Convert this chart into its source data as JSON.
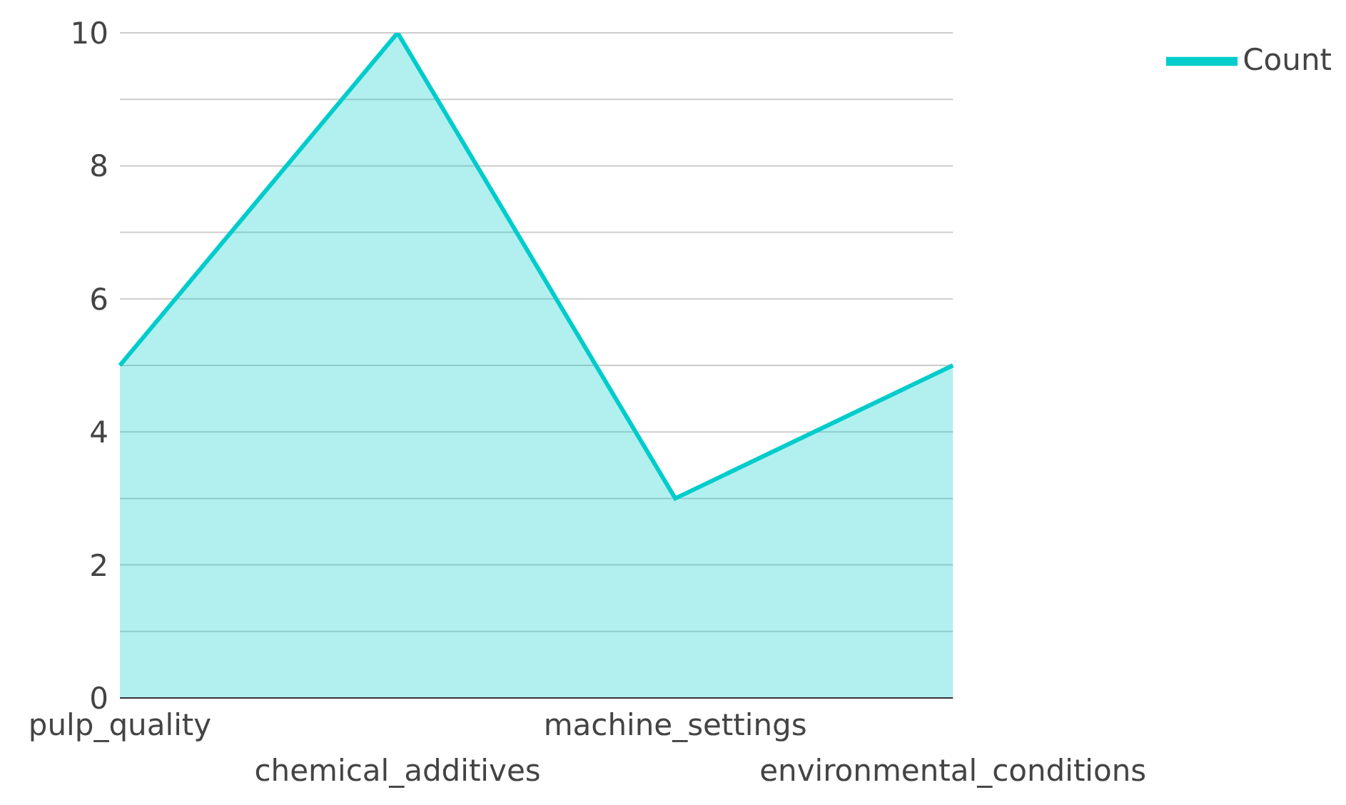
{
  "chart_data": {
    "type": "area",
    "categories": [
      "pulp_quality",
      "chemical_additives",
      "machine_settings",
      "environmental_conditions"
    ],
    "series": [
      {
        "name": "Count",
        "color": "#00cccc",
        "values": [
          5,
          10,
          3,
          5
        ]
      }
    ],
    "ylim": [
      0,
      10
    ],
    "yticks": [
      0,
      {
        "value": 1,
        "label": null
      },
      2,
      {
        "value": 3,
        "label": null
      },
      4,
      {
        "value": 5,
        "label": null
      },
      6,
      {
        "value": 7,
        "label": null
      },
      8,
      {
        "value": 9,
        "label": null
      },
      10
    ],
    "grid": "y",
    "legend": "top right"
  }
}
